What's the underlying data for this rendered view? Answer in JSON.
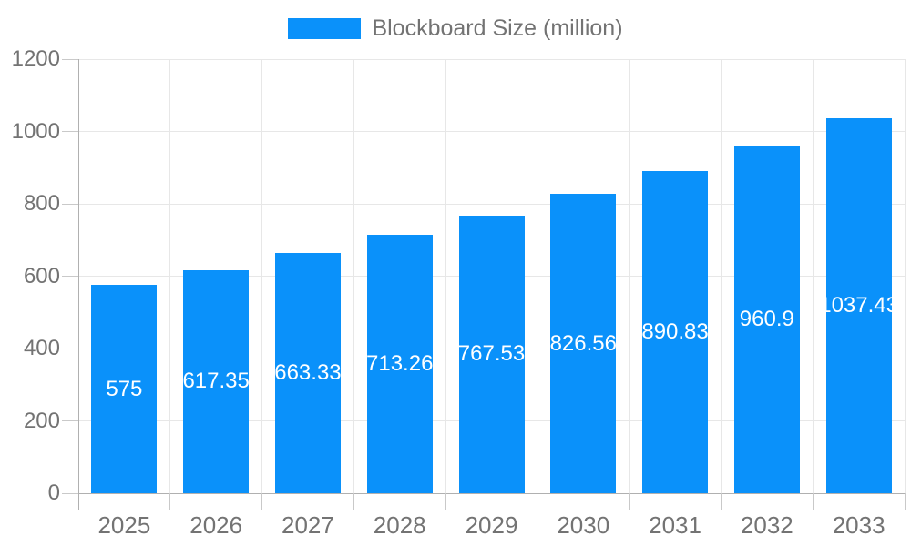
{
  "legend": {
    "label": "Blockboard Size (million)"
  },
  "chart_data": {
    "type": "bar",
    "title": "Blockboard Size (million)",
    "categories": [
      "2025",
      "2026",
      "2027",
      "2028",
      "2029",
      "2030",
      "2031",
      "2032",
      "2033"
    ],
    "series": [
      {
        "name": "Blockboard Size (million)",
        "values": [
          575,
          617.35,
          663.33,
          713.26,
          767.53,
          826.56,
          890.83,
          960.9,
          1037.43
        ]
      }
    ],
    "value_labels": [
      "575",
      "617.35",
      "663.33",
      "713.26",
      "767.53",
      "826.56",
      "890.83",
      "960.9",
      "1037.43"
    ],
    "xlabel": "",
    "ylabel": "",
    "ylim": [
      0,
      1200
    ],
    "yticks": [
      0,
      200,
      400,
      600,
      800,
      1000,
      1200
    ],
    "grid": true,
    "legend_position": "top-center",
    "colors": {
      "bar": "#0a91fa",
      "value_label": "#ffffff",
      "axis_text": "#737373",
      "gridline": "#e7e7e7",
      "axis_line": "#b0b0b0",
      "tick_mark": "#c9c9c9",
      "background": "#ffffff"
    }
  }
}
